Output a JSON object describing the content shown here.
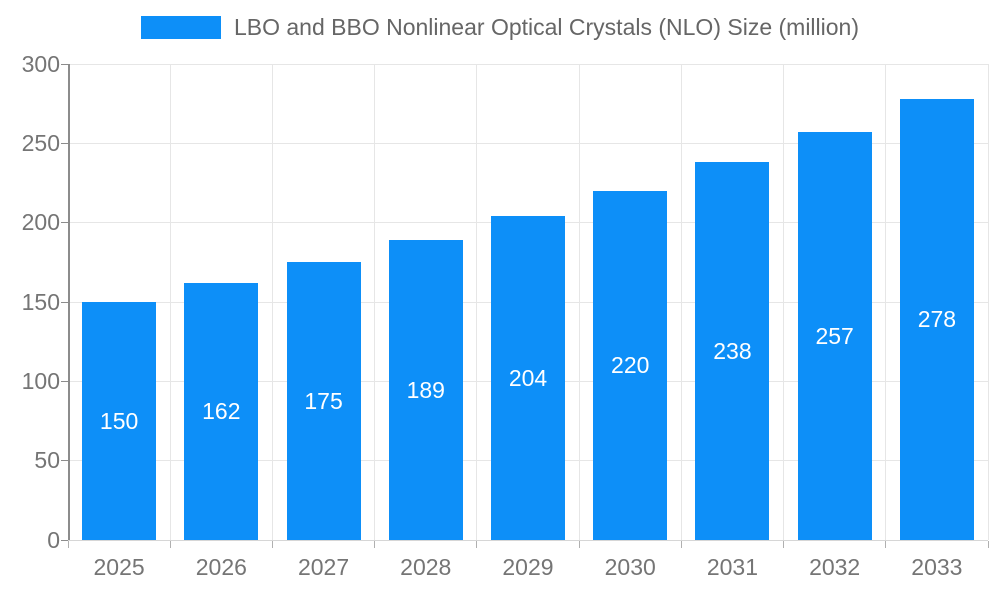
{
  "chart_data": {
    "type": "bar",
    "title": "LBO and BBO Nonlinear Optical Crystals (NLO) Size (million)",
    "categories": [
      "2025",
      "2026",
      "2027",
      "2028",
      "2029",
      "2030",
      "2031",
      "2032",
      "2033"
    ],
    "values": [
      150,
      162,
      175,
      189,
      204,
      220,
      238,
      257,
      278
    ],
    "xlabel": "",
    "ylabel": "",
    "ylim": [
      0,
      300
    ],
    "ytick_step": 50,
    "yticks": [
      0,
      50,
      100,
      150,
      200,
      250,
      300
    ],
    "grid": "on",
    "legend_position": "top-center",
    "bar_labels_inside": true,
    "colors": {
      "bar": "#0d8ff8",
      "bar_label": "#ffffff",
      "grid": "#e6e6e6",
      "y_axis": "#8c8c8c",
      "x_axis": "#d6d6d6",
      "tick": "#b0b0b0",
      "axis_text": "#757575",
      "title_text": "#666666",
      "background": "#ffffff"
    }
  }
}
